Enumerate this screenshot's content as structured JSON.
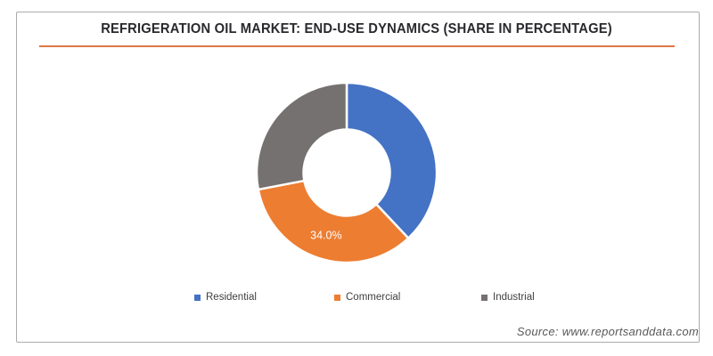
{
  "header": {
    "title": "REFRIGERATION OIL MARKET: END-USE DYNAMICS (SHARE IN PERCENTAGE)"
  },
  "chart_data": {
    "type": "pie",
    "subtype": "donut",
    "title": "Refrigeration Oil Market: End-Use Dynamics (Share in Percentage)",
    "categories": [
      "Residential",
      "Commercial",
      "Industrial"
    ],
    "values": [
      38.0,
      34.0,
      28.0
    ],
    "slices": [
      {
        "name": "Residential",
        "value": 38.0,
        "color": "#4472C4",
        "label": ""
      },
      {
        "name": "Commercial",
        "value": 34.0,
        "color": "#ED7D31",
        "label": "34.0%"
      },
      {
        "name": "Industrial",
        "value": 28.0,
        "color": "#767171",
        "label": ""
      }
    ],
    "start_angle_deg": 0,
    "direction": "clockwise",
    "hole_radius_ratio": 0.48,
    "legend_position": "bottom",
    "data_labels": "only Commercial slice labeled, white text"
  },
  "footer": {
    "source": "Source: www.reportsanddata.com"
  },
  "style": {
    "accent_rule_color": "#DD7645",
    "frame_border_color": "#ABABAB",
    "title_text_color": "#2A2A2E",
    "slice_label_text_color": "#FFFFFF",
    "legend_text_color": "#3F3F3F",
    "source_text_color": "#595959"
  }
}
